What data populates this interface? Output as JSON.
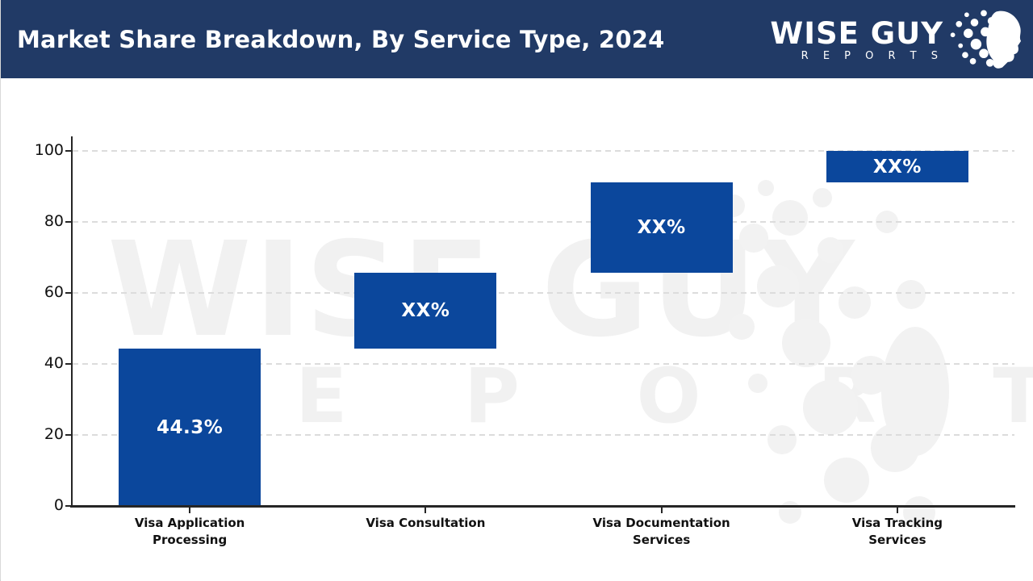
{
  "header": {
    "title": "Market Share Breakdown, By Service Type, 2024",
    "logo": {
      "name": "WISE GUY",
      "tagline": "R E P O R T S"
    }
  },
  "watermark": {
    "line1": "WISE GUY",
    "line2": "R E P O R T S"
  },
  "colors": {
    "header_bg": "#213a66",
    "bar": "#0b479c",
    "bar_label": "#ffffff",
    "grid": "#dcdcdc",
    "axis": "#262626",
    "watermark": "#f1f1f1"
  },
  "chart_data": {
    "type": "bar",
    "subtype": "waterfall",
    "title": "Market Share Breakdown, By Service Type, 2024",
    "xlabel": "",
    "ylabel": "",
    "ylim": [
      0,
      105
    ],
    "grid": true,
    "legend": "none",
    "categories": [
      "Visa Application Processing",
      "Visa Consultation",
      "Visa Documentation Services",
      "Visa Tracking Services"
    ],
    "category_lines": [
      [
        "Visa Application",
        "Processing"
      ],
      [
        "Visa Consultation"
      ],
      [
        "Visa Documentation",
        "Services"
      ],
      [
        "Visa Tracking",
        "Services"
      ]
    ],
    "y_ticks": [
      0,
      20,
      40,
      60,
      80,
      100
    ],
    "segments": [
      {
        "category": "Visa Application Processing",
        "from": 0,
        "to": 44.3,
        "label": "44.3%"
      },
      {
        "category": "Visa Consultation",
        "from": 44.3,
        "to": 65.7,
        "label": "XX%"
      },
      {
        "category": "Visa Documentation Services",
        "from": 65.7,
        "to": 91.1,
        "label": "XX%"
      },
      {
        "category": "Visa Tracking Services",
        "from": 91.1,
        "to": 100,
        "label": "XX%"
      }
    ]
  }
}
